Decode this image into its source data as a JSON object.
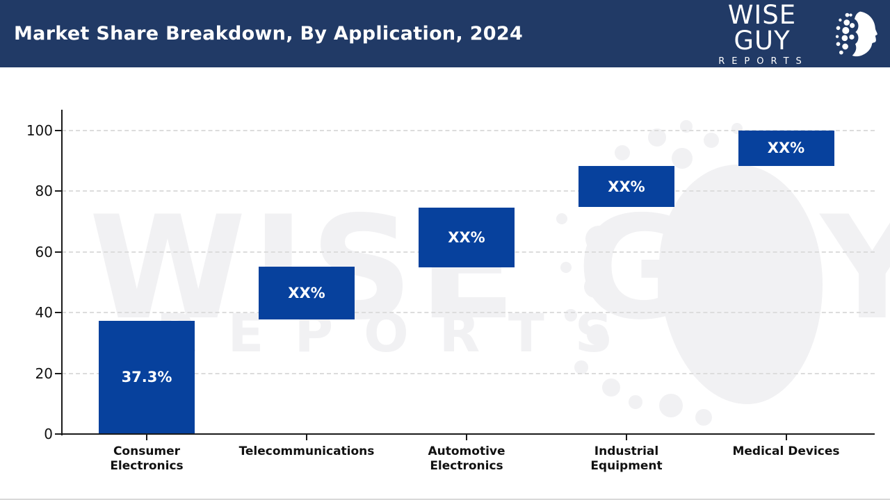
{
  "header": {
    "title": "Market Share Breakdown, By Application, 2024",
    "bg_color": "#213a66",
    "logo": {
      "line1": "WISE GUY",
      "line2": "REPORTS"
    }
  },
  "watermark": {
    "line1": "WISE GUY",
    "line2": "REPORTS"
  },
  "chart_data": {
    "type": "bar",
    "variant": "waterfall",
    "title": "Market Share Breakdown, By Application, 2024",
    "categories": [
      "Consumer\nElectronics",
      "Telecommunications",
      "Automotive\nElectronics",
      "Industrial\nEquipment",
      "Medical Devices"
    ],
    "segments": [
      {
        "name": "Consumer Electronics",
        "start": 0,
        "end": 37.3,
        "label": "37.3%"
      },
      {
        "name": "Telecommunications",
        "start": 37.7,
        "end": 55.1,
        "label": "XX%"
      },
      {
        "name": "Automotive Electronics",
        "start": 54.9,
        "end": 74.5,
        "label": "XX%"
      },
      {
        "name": "Industrial Equipment",
        "start": 74.7,
        "end": 88.2,
        "label": "XX%"
      },
      {
        "name": "Medical Devices",
        "start": 88.2,
        "end": 100,
        "label": "XX%"
      }
    ],
    "xlabel": "",
    "ylabel": "",
    "ylim": [
      0,
      107
    ],
    "yticks": [
      0,
      20,
      40,
      60,
      80,
      100
    ],
    "grid": "horizontal-dashed",
    "legend": "none",
    "bar_color": "#07419d",
    "bar_label_color": "#ffffff",
    "axis_color": "#1a1a1a",
    "gridline_color": "#dcdcdc"
  }
}
